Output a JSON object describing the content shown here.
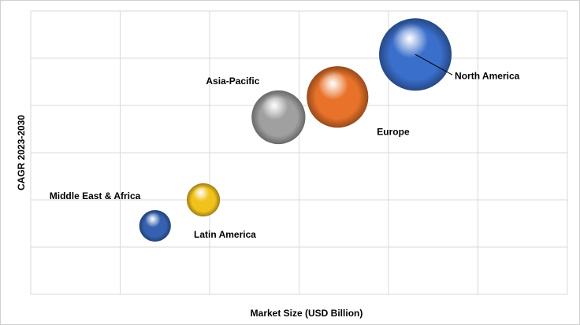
{
  "chart_data": {
    "type": "bubble",
    "x_label": "Market Size (USD Billion)",
    "y_label": "CAGR 2023-2030",
    "xlim": [
      0,
      6
    ],
    "ylim": [
      0,
      6
    ],
    "xticks": [
      0,
      1,
      2,
      3,
      4,
      5,
      6
    ],
    "yticks": [
      0,
      1,
      2,
      3,
      4,
      5,
      6
    ],
    "grid": true,
    "show_tick_labels": false,
    "points": [
      {
        "name": "North America",
        "color": "#3b6fcc",
        "x": 4.3,
        "y": 5.08,
        "size": 100
      },
      {
        "name": "Europe",
        "color": "#e8722a",
        "x": 3.43,
        "y": 4.18,
        "size": 72
      },
      {
        "name": "Asia-Pacific",
        "color": "#a0a0a0",
        "x": 2.77,
        "y": 3.75,
        "size": 55
      },
      {
        "name": "Latin America",
        "color": "#f2c21c",
        "x": 1.93,
        "y": 2.0,
        "size": 21
      },
      {
        "name": "Middle East & Africa",
        "color": "#3561b0",
        "x": 1.39,
        "y": 1.45,
        "size": 19
      }
    ]
  }
}
